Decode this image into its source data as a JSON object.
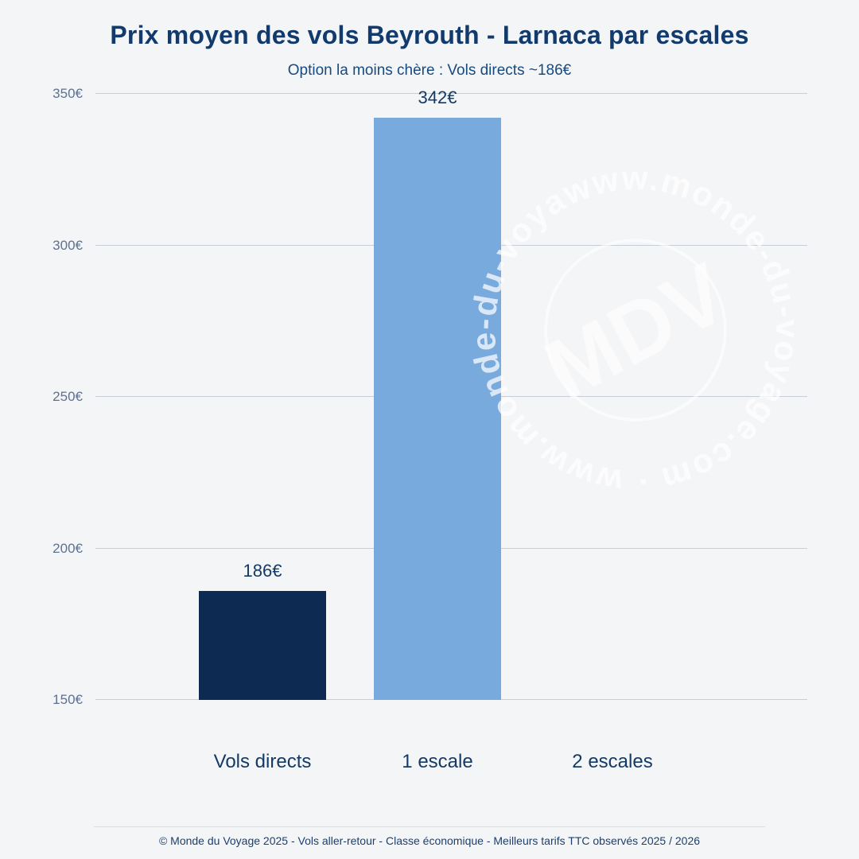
{
  "title": "Prix moyen des vols Beyrouth - Larnaca par escales",
  "subtitle": "Option la moins chère : Vols directs ~186€",
  "footer": "© Monde du Voyage 2025 - Vols aller-retour - Classe économique - Meilleurs tarifs TTC observés 2025 / 2026",
  "watermark": {
    "circle_text": "www.monde-du-voyage.com · www.monde-du-voyage.com ·",
    "center_text": "MDV"
  },
  "colors": {
    "background": "#f4f5f7",
    "title": "#123a6d",
    "subtitle": "#174a7e",
    "grid": "#c7ced9",
    "tick": "#5d7190",
    "bar_dark": "#0d2a52",
    "bar_light": "#79aadd",
    "label": "#143a66"
  },
  "chart_data": {
    "type": "bar",
    "title": "Prix moyen des vols Beyrouth - Larnaca par escales",
    "subtitle": "Option la moins chère : Vols directs ~186€",
    "categories": [
      "Vols directs",
      "1 escale",
      "2 escales"
    ],
    "values": [
      186,
      342,
      null
    ],
    "value_labels": [
      "186€",
      "342€",
      ""
    ],
    "bar_colors": [
      "#0d2a52",
      "#79aadd",
      null
    ],
    "xlabel": "",
    "ylabel": "",
    "ylim": [
      150,
      350
    ],
    "yticks": [
      150,
      200,
      250,
      300,
      350
    ],
    "ytick_labels": [
      "150€",
      "200€",
      "250€",
      "300€",
      "350€"
    ],
    "grid": true,
    "legend": false
  }
}
